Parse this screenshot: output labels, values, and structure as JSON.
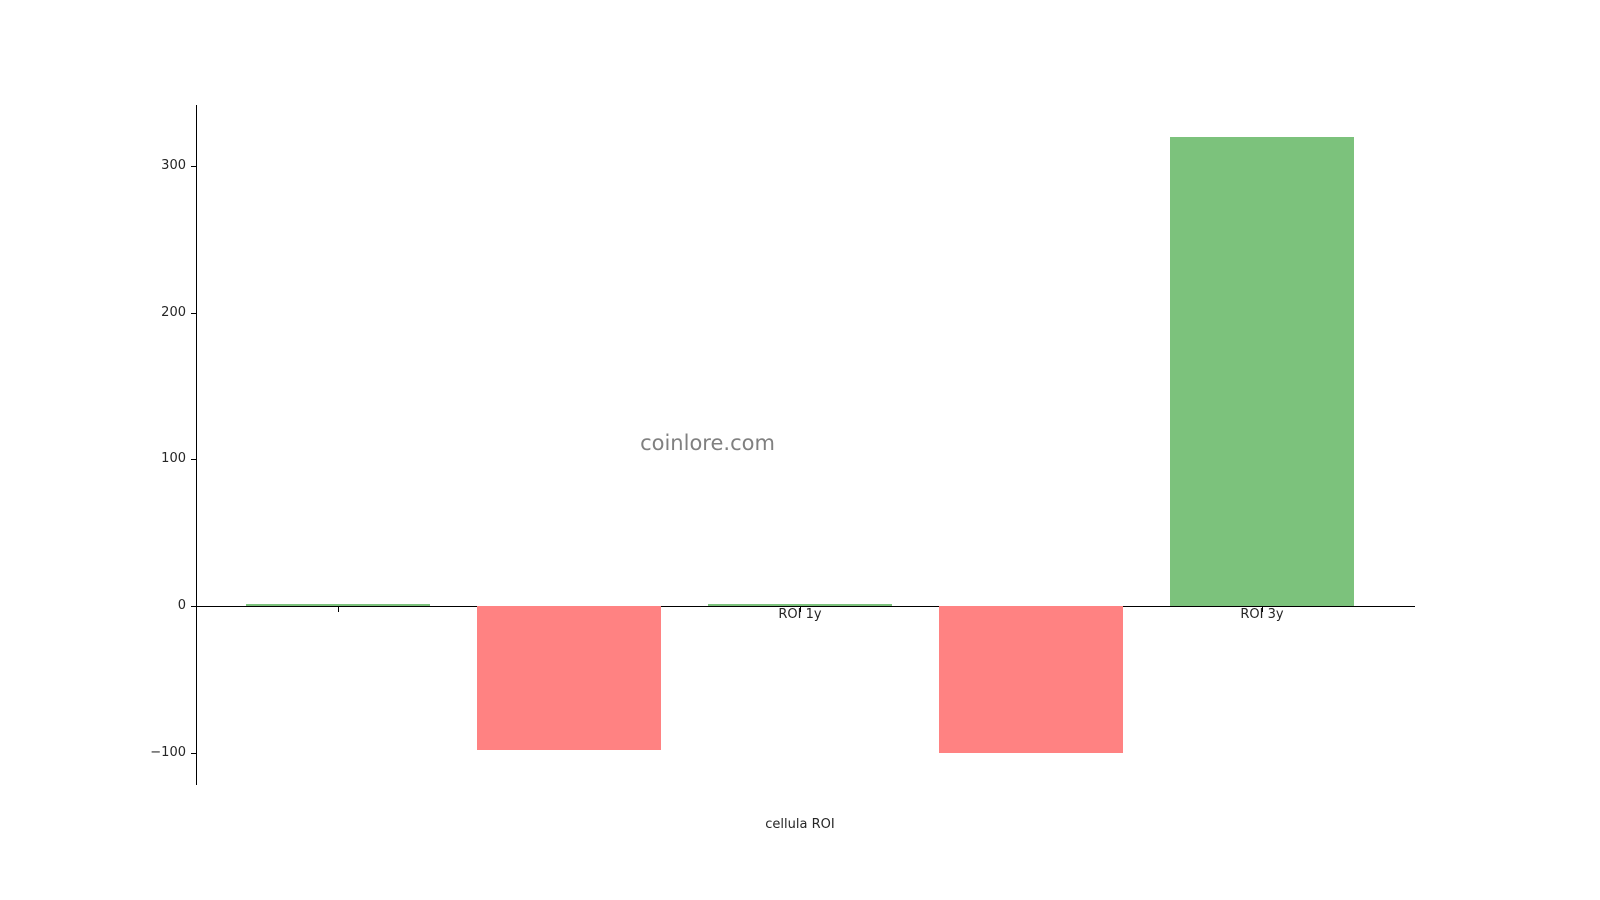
{
  "watermark": "coinlore.com",
  "chart_data": {
    "type": "bar",
    "title": "",
    "xlabel": "cellula ROI",
    "ylabel": "",
    "categories": [
      "",
      "",
      "ROI 1y",
      "",
      "ROI 3y"
    ],
    "values": [
      1.5,
      -98,
      1.5,
      -100,
      320
    ],
    "bar_colors": [
      "#7cc27c",
      "#ff8282",
      "#7cc27c",
      "#ff8282",
      "#7cc27c"
    ],
    "positive_color": "#7cc27c",
    "negative_color": "#ff8282",
    "ylim": [
      -122,
      342
    ],
    "yticks": [
      {
        "label": "300",
        "value": 300
      },
      {
        "label": "200",
        "value": 200
      },
      {
        "label": "100",
        "value": 100
      },
      {
        "label": "0",
        "value": 0
      },
      {
        "label": "−100",
        "value": -100
      }
    ],
    "grid": false,
    "legend": "none"
  }
}
